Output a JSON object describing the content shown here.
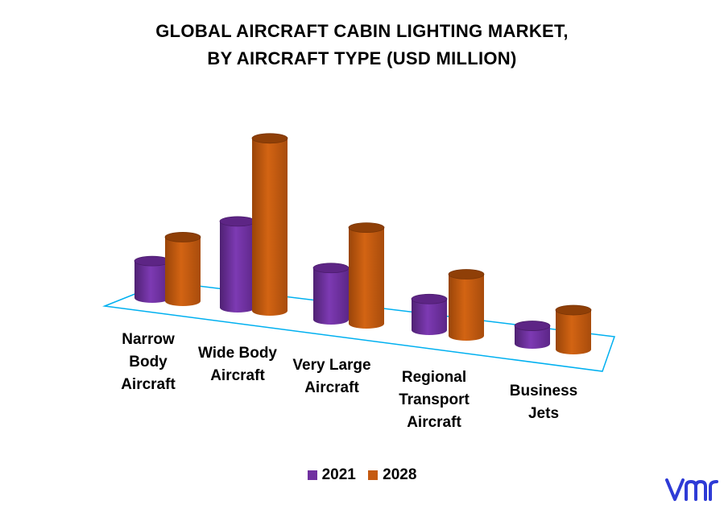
{
  "chart_data": {
    "type": "bar",
    "style": "3d-cylinder",
    "title_lines": [
      "GLOBAL AIRCRAFT CABIN LIGHTING MARKET,",
      "BY AIRCRAFT TYPE (USD MILLION)"
    ],
    "categories": [
      [
        "Narrow",
        "Body",
        "Aircraft"
      ],
      [
        "Wide Body",
        "Aircraft"
      ],
      [
        "Very Large",
        "Aircraft"
      ],
      [
        "Regional",
        "Transport",
        "Aircraft"
      ],
      [
        "Business",
        "Jets"
      ]
    ],
    "series": [
      {
        "name": "2021",
        "color": "#7030a0",
        "values": [
          45,
          105,
          63,
          38,
          22
        ]
      },
      {
        "name": "2028",
        "color": "#c55a11",
        "values": [
          78,
          210,
          117,
          75,
          48
        ]
      }
    ],
    "ylim": [
      0,
      220
    ],
    "grid": false,
    "legend_position": "bottom"
  },
  "colors": {
    "floor_line": "#00b0f0",
    "logo": "#2e3bd6"
  },
  "logo_icon": "vmr-logo"
}
